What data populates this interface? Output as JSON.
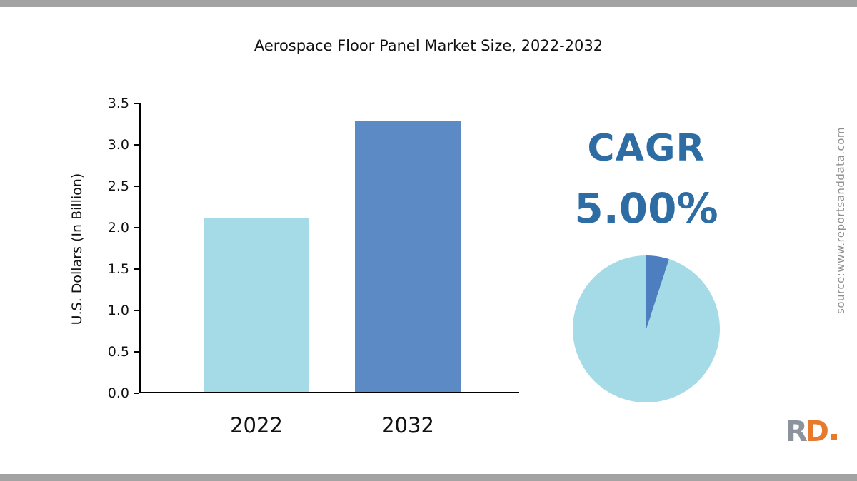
{
  "page": {
    "source": "source:www.reportsanddata.com",
    "logo": {
      "text_gray": "R",
      "text_orange": "D"
    }
  },
  "cagr": {
    "label": "CAGR",
    "value": "5.00%",
    "color": "#2e6da4"
  },
  "chart_data": [
    {
      "type": "bar",
      "title": "Aerospace Floor Panel Market Size, 2022-2032",
      "categories": [
        "2022",
        "2032"
      ],
      "values": [
        2.1,
        3.27
      ],
      "bar_colors": [
        "#a5dbe6",
        "#5b8ac5"
      ],
      "xlabel": "",
      "ylabel": "U.S. Dollars (In Billion)",
      "ylim": [
        0,
        3.5
      ],
      "yticks": [
        0.0,
        0.5,
        1.0,
        1.5,
        2.0,
        2.5,
        3.0,
        3.5
      ],
      "grid": false,
      "legend": "none"
    },
    {
      "type": "pie",
      "title": "CAGR 5.00%",
      "labels": [
        "CAGR slice",
        "remainder"
      ],
      "values": [
        5,
        95
      ],
      "colors": [
        "#4d7ec0",
        "#a5dbe6"
      ]
    }
  ]
}
